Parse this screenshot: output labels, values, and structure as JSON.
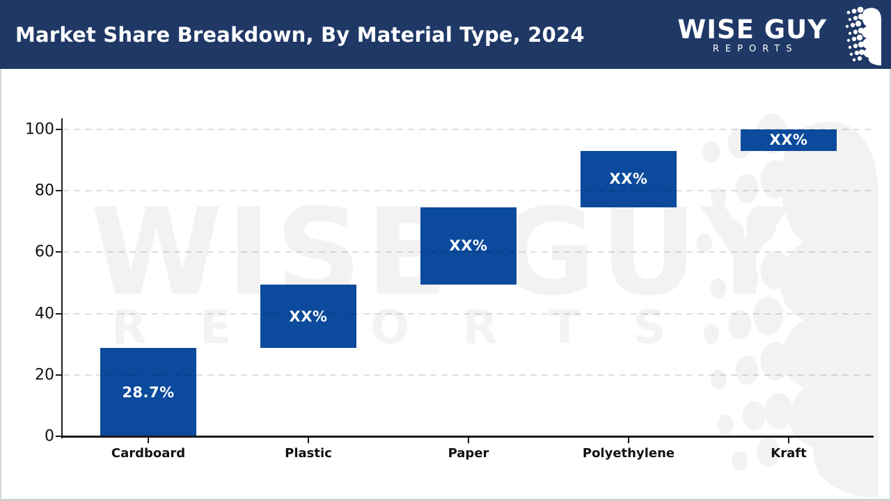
{
  "header": {
    "title": "Market Share Breakdown, By Material Type, 2024",
    "logo_line1": "WISE GUY",
    "logo_line2": "REPORTS"
  },
  "watermark": {
    "line1": "WISE GUY",
    "line2": "REPORTS"
  },
  "chart_data": {
    "type": "bar",
    "subtype": "waterfall",
    "title": "Market Share Breakdown, By Material Type, 2024",
    "categories": [
      "Cardboard",
      "Plastic",
      "Paper",
      "Polyethylene",
      "Kraft"
    ],
    "segments": [
      {
        "category": "Cardboard",
        "start": 0,
        "end": 28.7,
        "label": "28.7%"
      },
      {
        "category": "Plastic",
        "start": 28.7,
        "end": 49.4,
        "label": "XX%"
      },
      {
        "category": "Paper",
        "start": 49.4,
        "end": 74.7,
        "label": "XX%"
      },
      {
        "category": "Polyethylene",
        "start": 74.7,
        "end": 93,
        "label": "XX%"
      },
      {
        "category": "Kraft",
        "start": 93,
        "end": 100,
        "label": "XX%"
      }
    ],
    "yticks": [
      0,
      20,
      40,
      60,
      80,
      100
    ],
    "ylim": [
      0,
      105
    ],
    "xlabel": "",
    "ylabel": "",
    "grid": "dashed-horizontal",
    "legend": "none",
    "bar_color": "#0b4a9c",
    "bar_label_color": "#ffffff"
  },
  "colors": {
    "header_bg": "#1f3866",
    "bar": "#0b4a9c",
    "axis": "#1a1a1a",
    "gridline": "#d9d9d9",
    "watermark": "#f2f2f2",
    "page_border": "#d6d6d6"
  }
}
